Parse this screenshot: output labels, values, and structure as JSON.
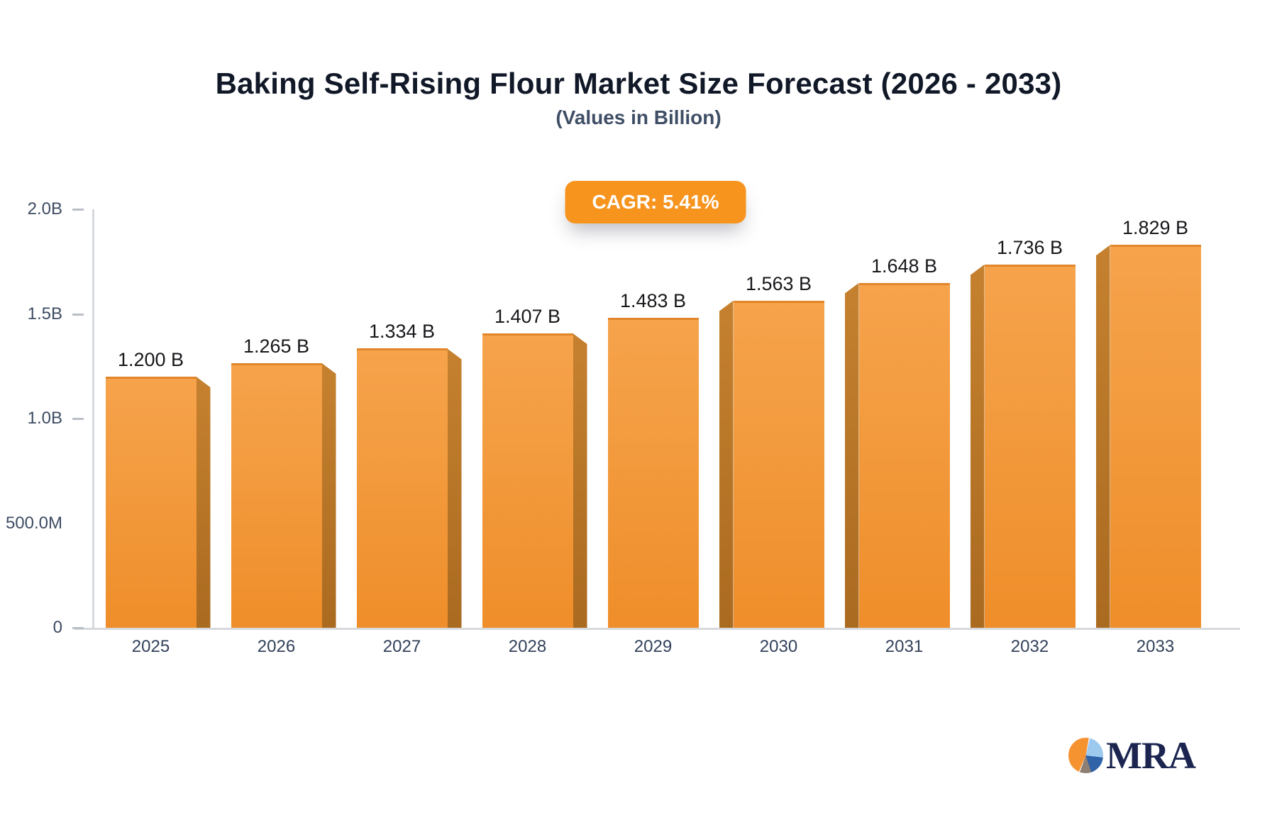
{
  "header": {
    "title": "Baking Self-Rising Flour Market Size Forecast (2026 - 2033)",
    "subtitle": "(Values in Billion)"
  },
  "badge": {
    "label": "CAGR: 5.41%"
  },
  "chart_data": {
    "type": "bar",
    "title": "Baking Self-Rising Flour Market Size Forecast (2026 - 2033)",
    "subtitle": "(Values in Billion)",
    "cagr_percent": 5.41,
    "categories": [
      "2025",
      "2026",
      "2027",
      "2028",
      "2029",
      "2030",
      "2031",
      "2032",
      "2033"
    ],
    "values": [
      1.2,
      1.265,
      1.334,
      1.407,
      1.483,
      1.563,
      1.648,
      1.736,
      1.829
    ],
    "value_labels": [
      "1.200 B",
      "1.265 B",
      "1.334 B",
      "1.407 B",
      "1.483 B",
      "1.563 B",
      "1.648 B",
      "1.736 B",
      "1.829 B"
    ],
    "ylim": [
      0,
      2.0
    ],
    "yticks": [
      {
        "label": "2.0B",
        "value": 2.0,
        "dash": true
      },
      {
        "label": "1.5B",
        "value": 1.5,
        "dash": true
      },
      {
        "label": "1.0B",
        "value": 1.0,
        "dash": true
      },
      {
        "label": "500.0M",
        "value": 0.5,
        "dash": false
      },
      {
        "label": "0",
        "value": 0.0,
        "dash": true
      }
    ],
    "gridlines": false,
    "bar_colors": {
      "face_top": "#f6a34c",
      "face_bottom": "#ef8e2a",
      "side": "#b5731f",
      "top_edge": "#e1862b"
    }
  },
  "colors": {
    "accent_orange": "#f7941e",
    "axis_line": "#d6d9dd",
    "title_text": "#111827",
    "subtitle_text": "#3f4e66",
    "tick_text": "#3e4c63",
    "value_text": "#18181c"
  },
  "logo": {
    "text": "MRA",
    "pie_slices": [
      {
        "name": "orange",
        "color": "#f59331"
      },
      {
        "name": "light-blue",
        "color": "#9ec9ef"
      },
      {
        "name": "dark-blue",
        "color": "#2f62a7"
      },
      {
        "name": "gray-brown",
        "color": "#8e7f74"
      }
    ]
  }
}
